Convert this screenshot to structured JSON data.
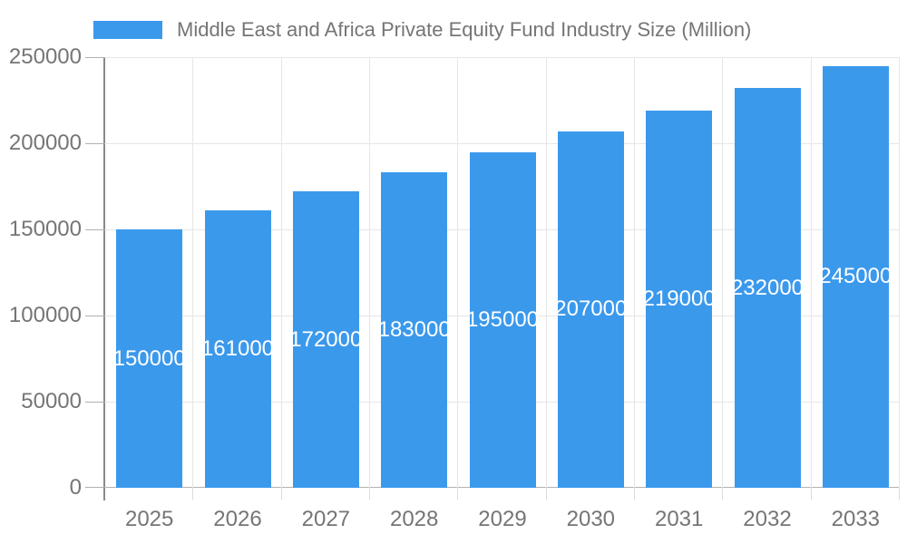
{
  "chart_data": {
    "type": "bar",
    "title": "",
    "legend": "Middle East and Africa Private Equity Fund Industry Size (Million)",
    "legend_position": "top",
    "categories": [
      "2025",
      "2026",
      "2027",
      "2028",
      "2029",
      "2030",
      "2031",
      "2032",
      "2033"
    ],
    "values": [
      150000,
      161000,
      172000,
      183000,
      195000,
      207000,
      219000,
      232000,
      245000
    ],
    "y_ticks": [
      0,
      50000,
      100000,
      150000,
      200000,
      250000
    ],
    "ylim": [
      0,
      250000
    ],
    "xlabel": "",
    "ylabel": "",
    "grid": true,
    "colors": {
      "bar": "#3B99EC",
      "text": "#757575",
      "grid": "#e6e6e6",
      "baseline": "#b2b2b2",
      "axis_line": "#8a8a8a",
      "y_tick": "#b0b0b0",
      "x_tick": "#dcdcdc",
      "value_label": "#ffffff",
      "background": "#ffffff"
    }
  }
}
